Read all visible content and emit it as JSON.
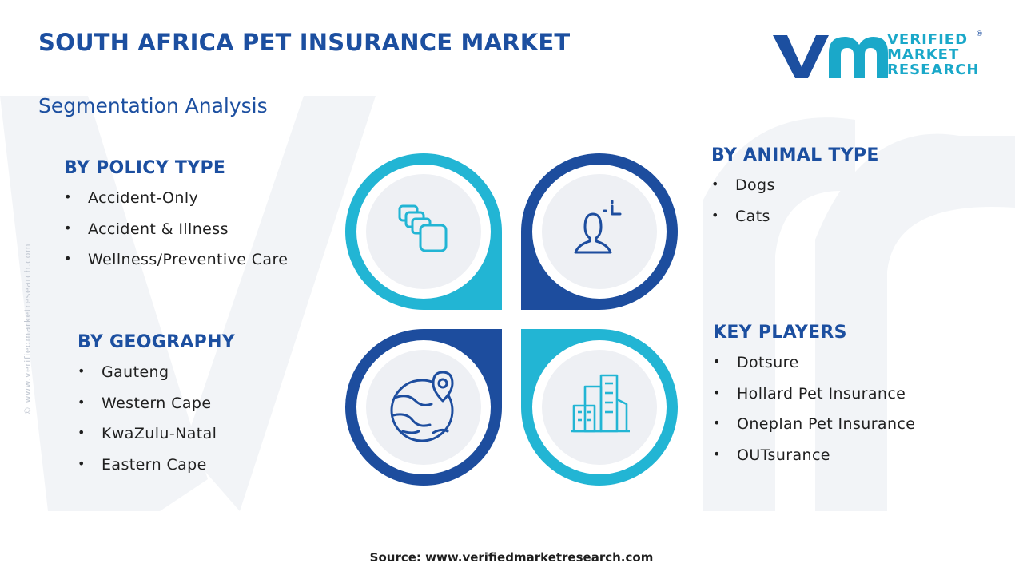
{
  "header": {
    "title": "SOUTH AFRICA PET INSURANCE MARKET",
    "subtitle": "Segmentation Analysis"
  },
  "logo": {
    "mark": "vmr",
    "line1": "VERIFIED",
    "line2": "MARKET",
    "line3": "RESEARCH",
    "registered": "®"
  },
  "side_watermark": "© www.verifiedmarketresearch.com",
  "segments": {
    "policy_type": {
      "title": "BY POLICY TYPE",
      "items": [
        "Accident-Only",
        "Accident & Illness",
        "Wellness/Preventive Care"
      ],
      "icon": "layers-icon"
    },
    "animal_type": {
      "title": "BY ANIMAL TYPE",
      "items": [
        "Dogs",
        "Cats"
      ],
      "icon": "user-target-icon"
    },
    "geography": {
      "title": "BY GEOGRAPHY",
      "items": [
        "Gauteng",
        "Western Cape",
        "KwaZulu-Natal",
        "Eastern Cape"
      ],
      "icon": "globe-pin-icon"
    },
    "key_players": {
      "title": "KEY PLAYERS",
      "items": [
        "Dotsure",
        "Hollard Pet Insurance",
        "Oneplan Pet Insurance",
        "OUTsurance"
      ],
      "icon": "buildings-icon"
    }
  },
  "colors": {
    "primary": "#1c4fa0",
    "accent": "#1aa8c9",
    "cyan_ring": "#22b5d4",
    "navy_ring": "#1d4d9e",
    "inner_circle": "#eef0f4"
  },
  "footer": {
    "source": "Source: www.verifiedmarketresearch.com"
  }
}
